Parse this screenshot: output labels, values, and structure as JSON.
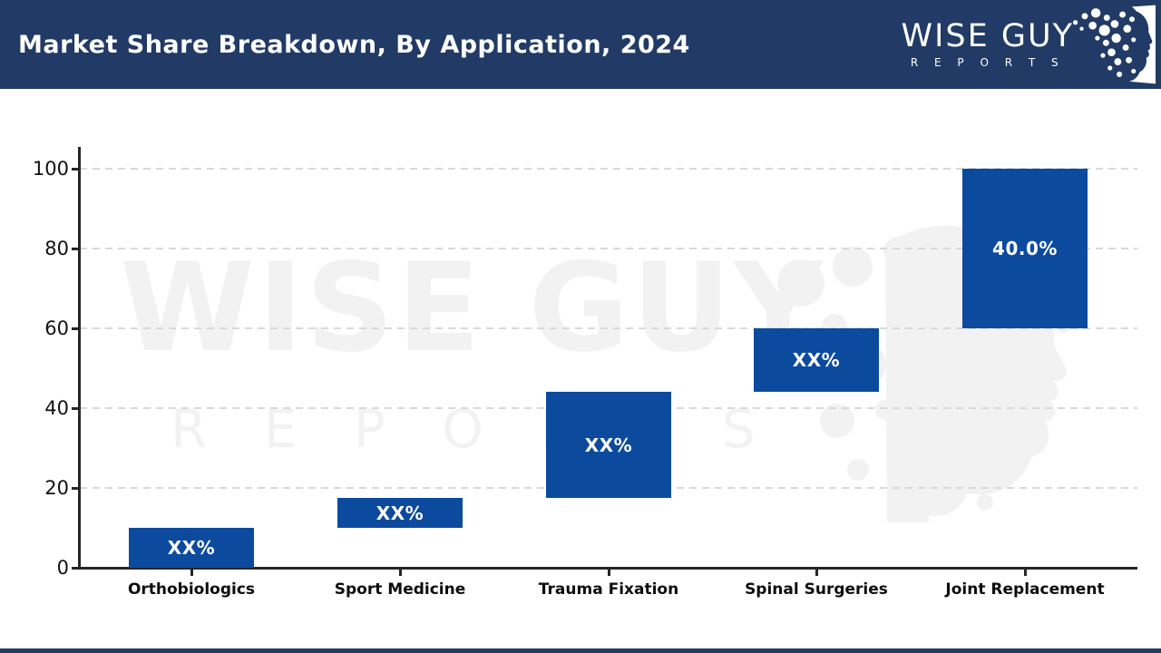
{
  "header": {
    "title": "Market Share Breakdown, By Application, 2024",
    "logo": {
      "line1": "WISE GUY",
      "line2": "R E P O R T S"
    }
  },
  "watermark": {
    "line1": "WISE GUY",
    "line2": "R E P O R T S"
  },
  "chart_data": {
    "type": "bar",
    "subtype": "waterfall-floating-bars",
    "title": "Market Share Breakdown, By Application, 2024",
    "categories": [
      "Orthobiologics",
      "Sport Medicine",
      "Trauma Fixation",
      "Spinal Surgeries",
      "Joint Replacement"
    ],
    "segments": [
      {
        "category": "Orthobiologics",
        "start": 0,
        "end": 10,
        "label": "XX%"
      },
      {
        "category": "Sport Medicine",
        "start": 10,
        "end": 17.5,
        "label": "XX%"
      },
      {
        "category": "Trauma Fixation",
        "start": 17.5,
        "end": 44,
        "label": "XX%"
      },
      {
        "category": "Spinal Surgeries",
        "start": 44,
        "end": 60,
        "label": "XX%"
      },
      {
        "category": "Joint Replacement",
        "start": 60,
        "end": 100,
        "label": "40.0%"
      }
    ],
    "visible_bar_labels": [
      "XX%",
      "XX%",
      "XX%",
      "XX%",
      "40.0%"
    ],
    "xlabel": "",
    "ylabel": "",
    "ylim": [
      0,
      100
    ],
    "yticks": [
      0,
      20,
      40,
      60,
      80,
      100
    ],
    "grid": "horizontal-dashed",
    "legend": "none",
    "bar_color": "#0c4a9e",
    "bar_label_color": "#ffffff"
  },
  "colors": {
    "header_bg": "#213a66",
    "footer_bg": "#213a66",
    "title_text": "#ffffff",
    "bar": "#0c4a9e",
    "grid": "#d9d9d9",
    "axis": "#262626",
    "watermark": "#f2f2f2"
  }
}
